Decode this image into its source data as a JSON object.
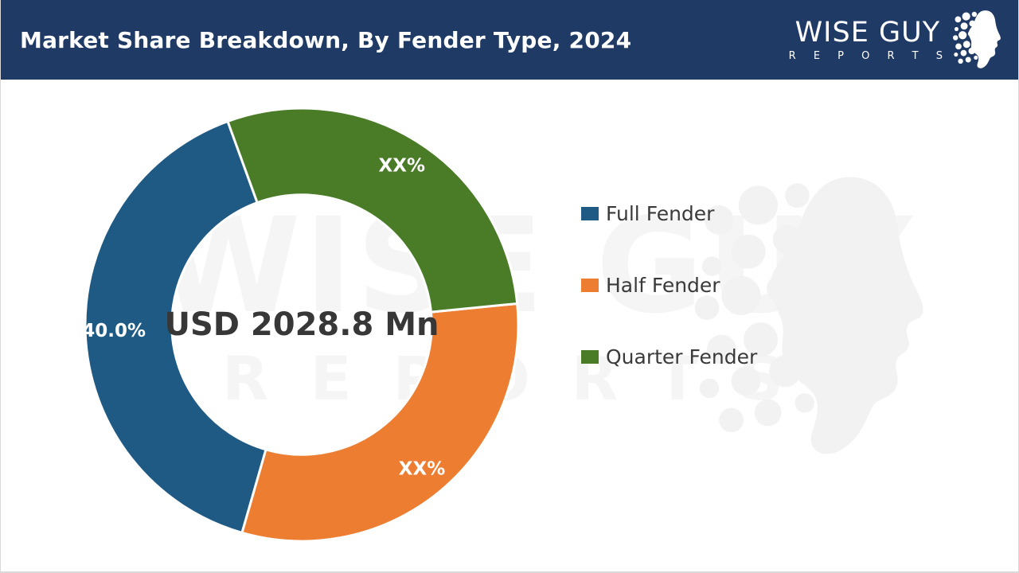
{
  "header": {
    "title": "Market Share Breakdown, By Fender Type, 2024",
    "background_color": "#203a66",
    "logo": {
      "name": "WISE GUY",
      "subname": "R E P O R T S"
    }
  },
  "watermark": {
    "line1": "WISE GUY",
    "line2": "REPORTS"
  },
  "chart_data": {
    "type": "donut",
    "title": "Market Share Breakdown, By Fender Type, 2024",
    "center_label": "USD 2028.8 Mn",
    "start_angle_deg": 110,
    "direction": "counterclockwise",
    "inner_radius_ratio": 0.6,
    "legend_position": "right",
    "segments": [
      {
        "label": "Full Fender",
        "display_value": "40.0%",
        "value_pct": 40.0,
        "color": "#1f5a85"
      },
      {
        "label": "Half Fender",
        "display_value": "XX%",
        "value_pct": 31.0,
        "color": "#ed7d31"
      },
      {
        "label": "Quarter Fender",
        "display_value": "XX%",
        "value_pct": 29.0,
        "color": "#4a7b27"
      }
    ]
  },
  "colors": {
    "header_bg": "#203a66",
    "full_fender": "#1f5a85",
    "half_fender": "#ed7d31",
    "quarter_fender": "#4a7b27",
    "center_text": "#373737",
    "legend_text": "#3a3a3a",
    "watermark": "#f4f4f4",
    "border": "#d9d9d9"
  }
}
